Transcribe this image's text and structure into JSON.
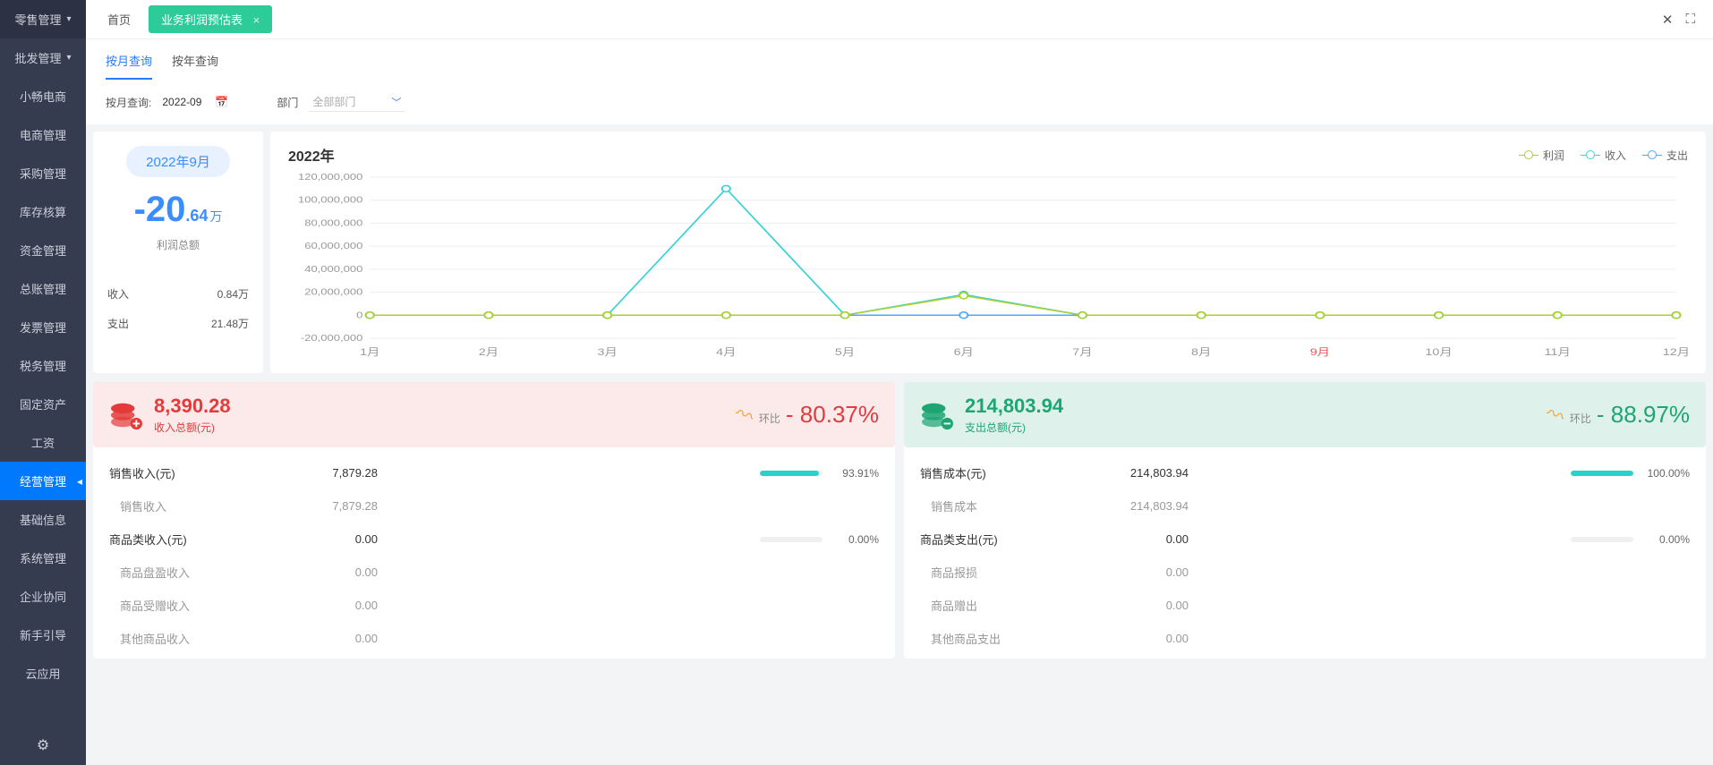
{
  "sidebar": {
    "items": [
      {
        "label": "零售管理",
        "hasSub": true
      },
      {
        "label": "批发管理",
        "hasSub": true
      },
      {
        "label": "小畅电商",
        "hasSub": false
      },
      {
        "label": "电商管理",
        "hasSub": false
      },
      {
        "label": "采购管理",
        "hasSub": false
      },
      {
        "label": "库存核算",
        "hasSub": false
      },
      {
        "label": "资金管理",
        "hasSub": false
      },
      {
        "label": "总账管理",
        "hasSub": false
      },
      {
        "label": "发票管理",
        "hasSub": false
      },
      {
        "label": "税务管理",
        "hasSub": false
      },
      {
        "label": "固定资产",
        "hasSub": false
      },
      {
        "label": "工资",
        "hasSub": false
      },
      {
        "label": "经营管理",
        "hasSub": false,
        "active": true
      },
      {
        "label": "基础信息",
        "hasSub": false
      },
      {
        "label": "系统管理",
        "hasSub": false
      },
      {
        "label": "企业协同",
        "hasSub": false
      },
      {
        "label": "新手引导",
        "hasSub": false
      },
      {
        "label": "云应用",
        "hasSub": false
      }
    ]
  },
  "tabs": {
    "home": "首页",
    "active": "业务利润预估表"
  },
  "subTabs": {
    "byMonth": "按月查询",
    "byYear": "按年查询"
  },
  "filters": {
    "monthLabel": "按月查询:",
    "monthValue": "2022-09",
    "deptLabel": "部门",
    "deptValue": "全部部门"
  },
  "summary": {
    "month": "2022年9月",
    "profitBig": "-20",
    "profitSmall": ".64",
    "profitUnit": "万",
    "profitLabel": "利润总额",
    "income": {
      "label": "收入",
      "value": "0.84万"
    },
    "expense": {
      "label": "支出",
      "value": "21.48万"
    }
  },
  "chart": {
    "title": "2022年",
    "legend": {
      "profit": "利润",
      "income": "收入",
      "expense": "支出"
    },
    "colors": {
      "profit": "#a9d22f",
      "income": "#3bd3d8",
      "expense": "#4ca7ff",
      "grid": "#eceef3",
      "axis": "#b9bfc8"
    },
    "ylim": [
      -20000000,
      120000000
    ],
    "yticks": [
      "-20,000,000",
      "0",
      "20,000,000",
      "40,000,000",
      "60,000,000",
      "80,000,000",
      "100,000,000",
      "120,000,000"
    ],
    "xlabels": [
      "1月",
      "2月",
      "3月",
      "4月",
      "5月",
      "6月",
      "7月",
      "8月",
      "9月",
      "10月",
      "11月",
      "12月"
    ],
    "highlightX": 8,
    "series": {
      "profit": [
        0,
        0,
        0,
        0,
        0,
        17000000,
        0,
        0,
        0,
        0,
        0,
        0
      ],
      "income": [
        0,
        0,
        0,
        110000000,
        0,
        18000000,
        0,
        0,
        0,
        0,
        0,
        0
      ],
      "expense": [
        0,
        0,
        0,
        0,
        0,
        0,
        0,
        0,
        0,
        0,
        0,
        0
      ]
    }
  },
  "income": {
    "total": "8,390.28",
    "sub": "收入总额(元)",
    "ratioLabel": "环比",
    "ratio": "- 80.37%",
    "iconColor": "#e33b3b",
    "rows": [
      {
        "name": "销售收入(元)",
        "value": "7,879.28",
        "pct": "93.91%",
        "pctVal": 93.91,
        "sub": false,
        "bar": true
      },
      {
        "name": "销售收入",
        "value": "7,879.28",
        "sub": true,
        "bar": false
      },
      {
        "name": "商品类收入(元)",
        "value": "0.00",
        "pct": "0.00%",
        "pctVal": 0,
        "sub": false,
        "bar": true
      },
      {
        "name": "商品盘盈收入",
        "value": "0.00",
        "sub": true,
        "bar": false
      },
      {
        "name": "商品受赠收入",
        "value": "0.00",
        "sub": true,
        "bar": false
      },
      {
        "name": "其他商品收入",
        "value": "0.00",
        "sub": true,
        "bar": false
      }
    ]
  },
  "expense": {
    "total": "214,803.94",
    "sub": "支出总额(元)",
    "ratioLabel": "环比",
    "ratio": "- 88.97%",
    "iconColor": "#1da574",
    "rows": [
      {
        "name": "销售成本(元)",
        "value": "214,803.94",
        "pct": "100.00%",
        "pctVal": 100,
        "sub": false,
        "bar": true
      },
      {
        "name": "销售成本",
        "value": "214,803.94",
        "sub": true,
        "bar": false
      },
      {
        "name": "商品类支出(元)",
        "value": "0.00",
        "pct": "0.00%",
        "pctVal": 0,
        "sub": false,
        "bar": true
      },
      {
        "name": "商品报损",
        "value": "0.00",
        "sub": true,
        "bar": false
      },
      {
        "name": "商品赠出",
        "value": "0.00",
        "sub": true,
        "bar": false
      },
      {
        "name": "其他商品支出",
        "value": "0.00",
        "sub": true,
        "bar": false
      }
    ]
  }
}
